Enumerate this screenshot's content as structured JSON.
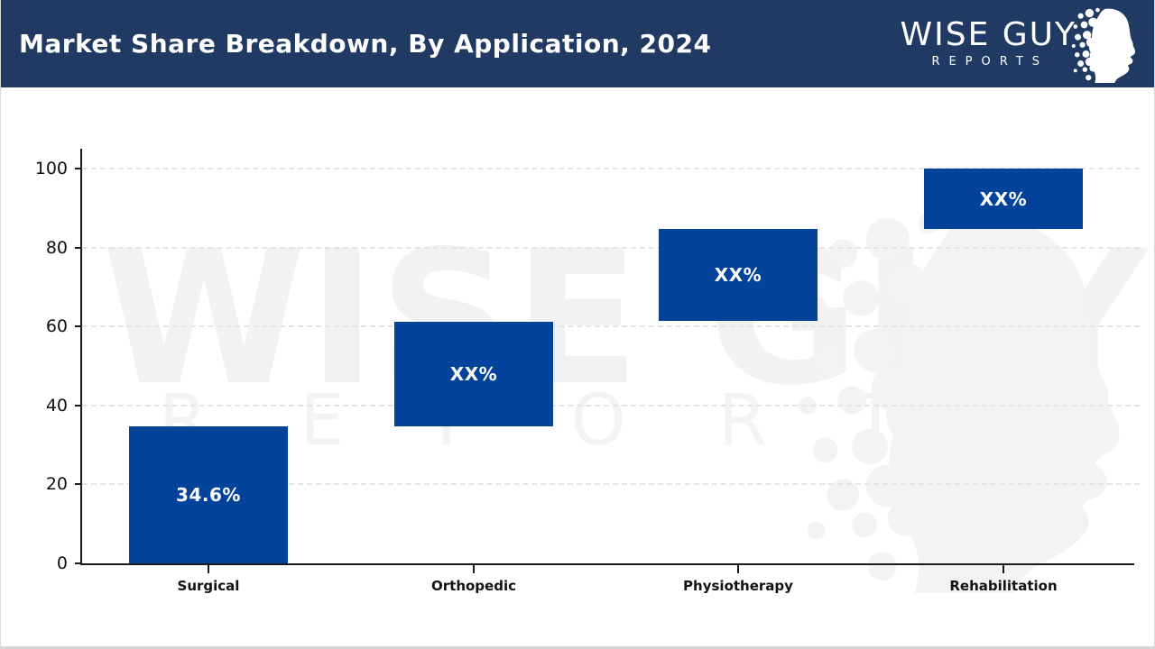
{
  "header": {
    "title": "Market Share Breakdown, By Application, 2024",
    "logo": {
      "line1": "WISE GUY",
      "line2": "REPORTS"
    }
  },
  "watermark": {
    "line1": "WISE GUY",
    "line2": "REPORTS"
  },
  "colors": {
    "header_bg": "#213a63",
    "bar": "#04439c",
    "grid": "#e4e4e4",
    "axis": "#1a1a1a",
    "bar_label": "#ffffff",
    "watermark": "#f2f2f2"
  },
  "chart_data": {
    "type": "bar",
    "subtype": "floating-waterfall",
    "title": "Market Share Breakdown, By Application, 2024",
    "categories": [
      "Surgical",
      "Orthopedic",
      "Physiotherapy",
      "Rehabilitation"
    ],
    "segments": [
      {
        "category": "Surgical",
        "start": 0,
        "end": 34.6,
        "label": "34.6%"
      },
      {
        "category": "Orthopedic",
        "start": 34.6,
        "end": 61.3,
        "label": "XX%"
      },
      {
        "category": "Physiotherapy",
        "start": 61.3,
        "end": 84.7,
        "label": "XX%"
      },
      {
        "category": "Rehabilitation",
        "start": 84.7,
        "end": 100,
        "label": "XX%"
      }
    ],
    "y_ticks": [
      0,
      20,
      40,
      60,
      80,
      100
    ],
    "ylim": [
      0,
      105
    ],
    "xlabel": "",
    "ylabel": "",
    "grid": "horizontal-dashed",
    "legend": "none",
    "unit": "percent"
  }
}
